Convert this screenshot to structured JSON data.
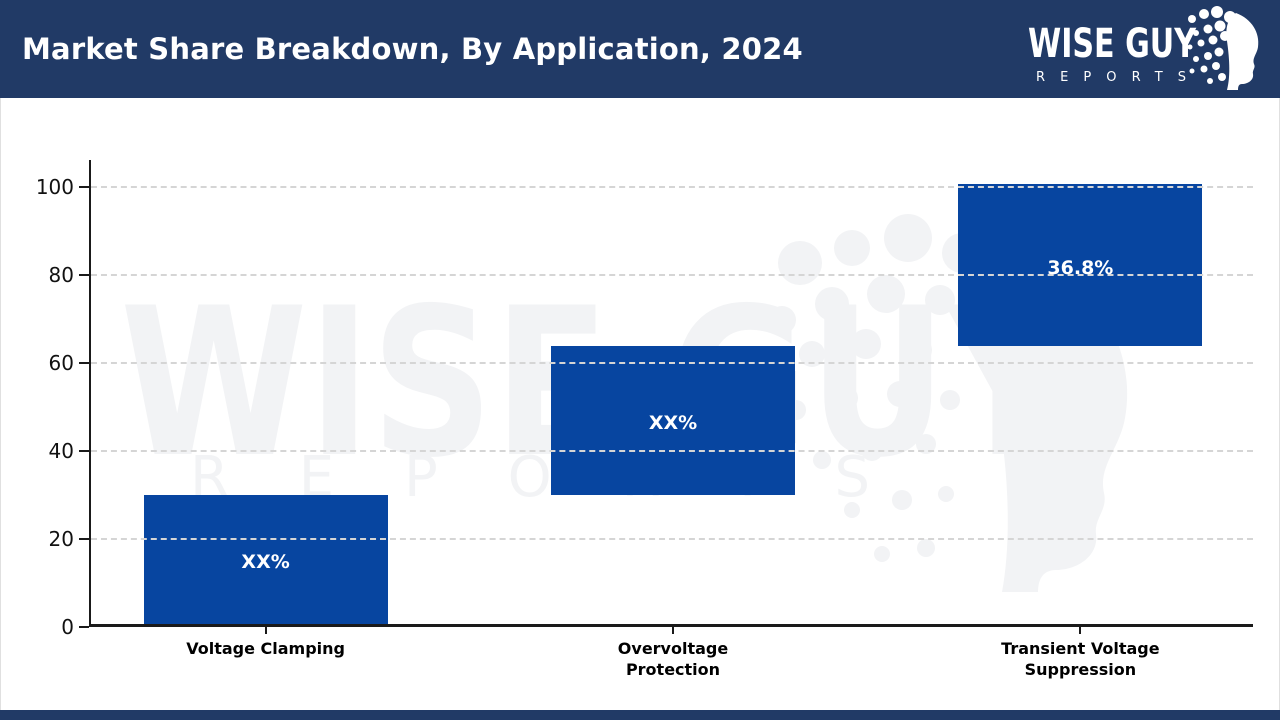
{
  "header": {
    "title": "Market Share Breakdown, By Application, 2024",
    "bg_color": "#213a66",
    "logo": {
      "name": "WISE GUY",
      "sub": "REPORTS"
    }
  },
  "watermark": {
    "name": "WISE GUY",
    "sub": "R E P O R T S"
  },
  "chart_data": {
    "type": "bar",
    "subtype": "waterfall-floating-bars",
    "title": "",
    "categories": [
      "Voltage Clamping",
      "Overvoltage\nProtection",
      "Transient Voltage\nSuppression"
    ],
    "bars": [
      {
        "category": "Voltage Clamping",
        "start": 0,
        "end": 29.4,
        "value_label": "XX%"
      },
      {
        "category": "Overvoltage Protection",
        "start": 29.4,
        "end": 63.2,
        "value_label": "XX%"
      },
      {
        "category": "Transient Voltage Suppression",
        "start": 63.2,
        "end": 100,
        "value_label": "36.8%"
      }
    ],
    "values": [
      29.4,
      33.8,
      36.8
    ],
    "y_ticks": [
      0,
      20,
      40,
      60,
      80,
      100
    ],
    "ylim": [
      0,
      100
    ],
    "bar_color": "#0745a0",
    "axis_color": "#1a1a1a",
    "grid": true,
    "grid_style": "dashed",
    "legend": false
  },
  "footer": {
    "bg_color": "#213a66"
  }
}
